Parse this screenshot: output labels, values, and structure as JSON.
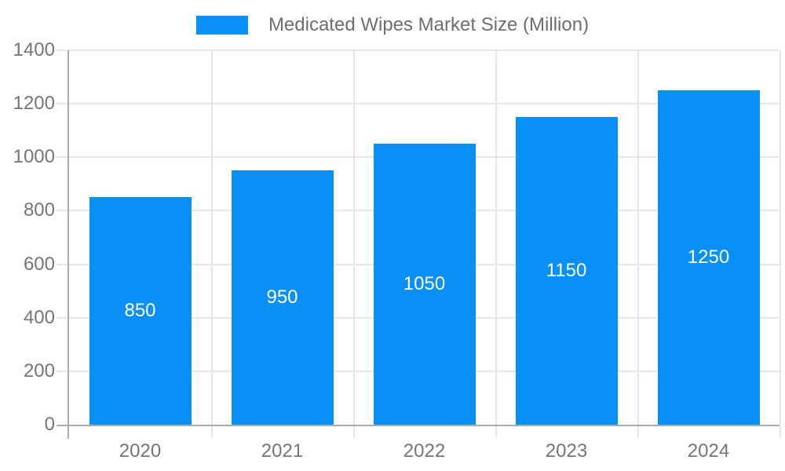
{
  "legend": {
    "label": "Medicated Wipes Market Size (Million)"
  },
  "chart_data": {
    "type": "bar",
    "title": "Medicated Wipes Market Size (Million)",
    "categories": [
      "2020",
      "2021",
      "2022",
      "2023",
      "2024"
    ],
    "values": [
      850,
      950,
      1050,
      1150,
      1250
    ],
    "series": [
      {
        "name": "Medicated Wipes Market Size (Million)",
        "values": [
          850,
          950,
          1050,
          1150,
          1250
        ]
      }
    ],
    "value_labels": [
      850,
      950,
      1050,
      1150,
      1250
    ],
    "value_label_position": "inside-center",
    "xlabel": "",
    "ylabel": "",
    "ylim": [
      0,
      1400
    ],
    "yticks": [
      0,
      200,
      400,
      600,
      800,
      1000,
      1200,
      1400
    ],
    "grid": true,
    "legend_position": "top-center"
  },
  "colors": {
    "accent": "#0990f6",
    "grid": "#e6e6e6",
    "axis": "#ababab",
    "axis_text": "#757575",
    "legend_text": "#6e6e6e",
    "bar_label_text": "#ffffff",
    "background": "#ffffff"
  }
}
